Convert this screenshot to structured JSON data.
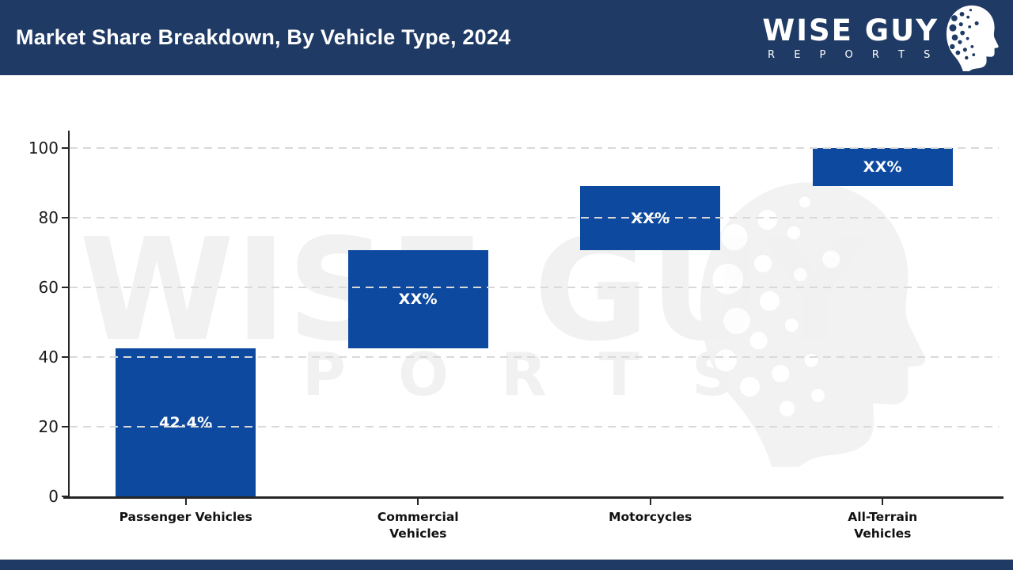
{
  "header": {
    "title": "Market Share Breakdown, By Vehicle Type, 2024",
    "logo": {
      "line1": "WISE GUY",
      "line2": "R E P O R T S"
    }
  },
  "watermark": {
    "line1": "WISE GUY",
    "line2": "P O R T S"
  },
  "colors": {
    "header_navy": "#1f3a64",
    "bar_blue": "#0d4a9f",
    "grid_gray": "#d9d9d9",
    "axis_dark": "#262626",
    "tick_text": "#1a1a1a",
    "watermark_gray": "#f1f1f1",
    "bar_label_white": "#ffffff"
  },
  "chart_data": {
    "type": "bar",
    "subtype": "waterfall",
    "title": "Market Share Breakdown, By Vehicle Type, 2024",
    "categories": [
      "Passenger Vehicles",
      "Commercial\nVehicles",
      "Motorcycles",
      "All-Terrain\nVehicles"
    ],
    "segments": [
      {
        "category": "Passenger Vehicles",
        "start": 0,
        "end": 42.4,
        "label": "42.4%"
      },
      {
        "category": "Commercial Vehicles",
        "start": 42.4,
        "end": 70.6,
        "label": "XX%"
      },
      {
        "category": "Motorcycles",
        "start": 70.6,
        "end": 89.0,
        "label": "XX%"
      },
      {
        "category": "All-Terrain Vehicles",
        "start": 89.0,
        "end": 100.0,
        "label": "XX%"
      }
    ],
    "xlabel": "",
    "ylabel": "",
    "yticks": [
      0,
      20,
      40,
      60,
      80,
      100
    ],
    "ylim": [
      0,
      105
    ],
    "grid": "horizontal dashed, drawn above bars",
    "legend": "none"
  }
}
